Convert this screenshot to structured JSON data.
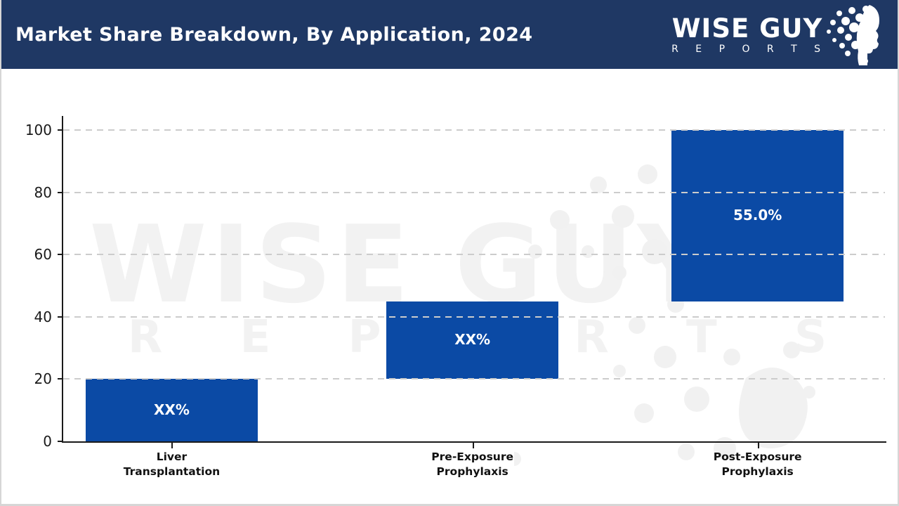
{
  "header": {
    "title": "Market Share Breakdown, By Application, 2024",
    "bg_color": "#1f3864",
    "logo": {
      "line1": "WISE GUY",
      "line2": "R E P O R T S"
    }
  },
  "watermark": {
    "line1": "WISE GUY",
    "line2": "R E P O R T S"
  },
  "chart_data": {
    "type": "bar",
    "subtype": "floating-range-bars",
    "title": "Market Share Breakdown, By Application, 2024",
    "categories": [
      {
        "line1": "Liver",
        "line2": "Transplantation"
      },
      {
        "line1": "Pre-Exposure",
        "line2": "Prophylaxis"
      },
      {
        "line1": "Post-Exposure",
        "line2": "Prophylaxis"
      }
    ],
    "series": [
      {
        "name": "Market Share",
        "ranges": [
          [
            0,
            20
          ],
          [
            20,
            45
          ],
          [
            45,
            100
          ]
        ],
        "labels": [
          "XX%",
          "XX%",
          "55.0%"
        ]
      }
    ],
    "ylim": [
      0,
      100
    ],
    "yticks": [
      0,
      20,
      40,
      60,
      80,
      100
    ],
    "xlabel": "",
    "ylabel": "",
    "grid": "horizontal-dashed",
    "legend": "none",
    "bar_color": "#0b4aa5",
    "label_color": "#ffffff",
    "grid_color": "#cccccc",
    "axis_color": "#1a1a1a"
  }
}
